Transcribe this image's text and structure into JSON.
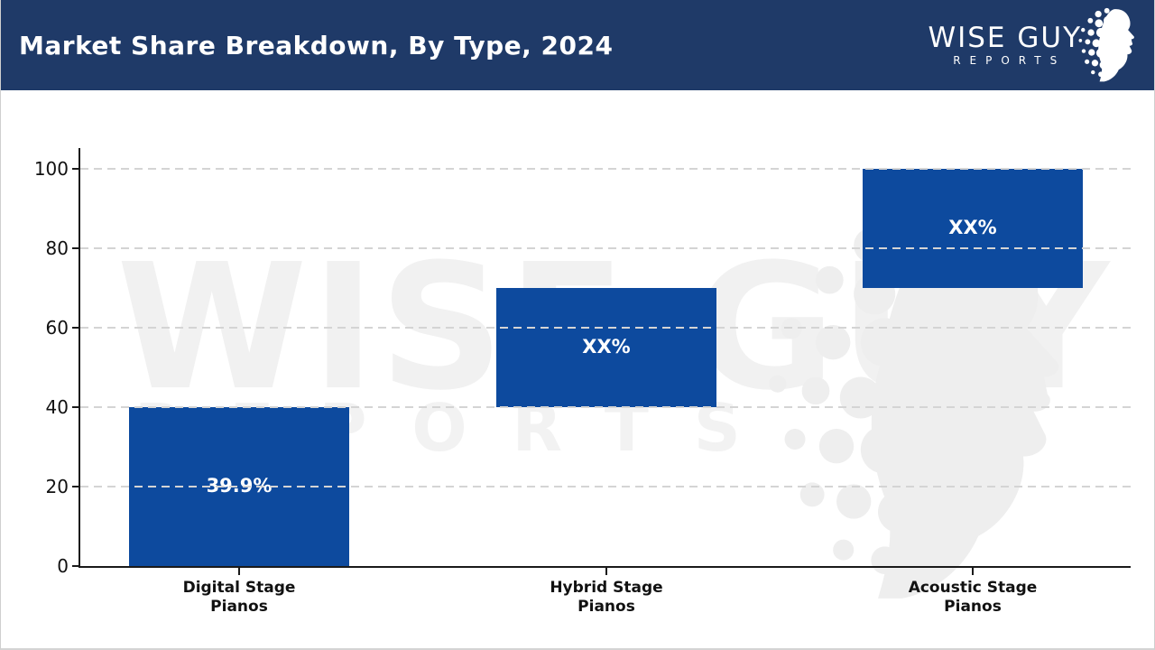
{
  "header": {
    "title": "Market Share Breakdown, By Type, 2024",
    "logo": {
      "line1": "WISE GUY",
      "line2": "REPORTS"
    }
  },
  "watermark": {
    "line1": "WISE GUY",
    "line2": "REPORTS"
  },
  "colors": {
    "header_bg": "#1f3a68",
    "bar": "#0d4a9e",
    "bar_label": "#ffffff",
    "grid": "#d4d4d4",
    "axis": "#1a1a1a",
    "watermark": "#f1f1f1"
  },
  "chart_data": {
    "type": "bar",
    "subtype": "floating-waterfall",
    "title": "Market Share Breakdown, By Type, 2024",
    "categories": [
      "Digital Stage\nPianos",
      "Hybrid Stage\nPianos",
      "Acoustic Stage\nPianos"
    ],
    "series": [
      {
        "name": "Market Share",
        "segments": [
          {
            "category": "Digital Stage Pianos",
            "start": 0,
            "end": 40,
            "label": "39.9%"
          },
          {
            "category": "Hybrid Stage Pianos",
            "start": 40,
            "end": 70,
            "label": "XX%"
          },
          {
            "category": "Acoustic Stage Pianos",
            "start": 70,
            "end": 100,
            "label": "XX%"
          }
        ]
      }
    ],
    "xlabel": "",
    "ylabel": "",
    "ylim": [
      0,
      100
    ],
    "yticks": [
      0,
      20,
      40,
      60,
      80,
      100
    ],
    "grid": {
      "horizontal": true,
      "style": "dashed",
      "drawn_over_bars": true
    },
    "legend": "none"
  }
}
